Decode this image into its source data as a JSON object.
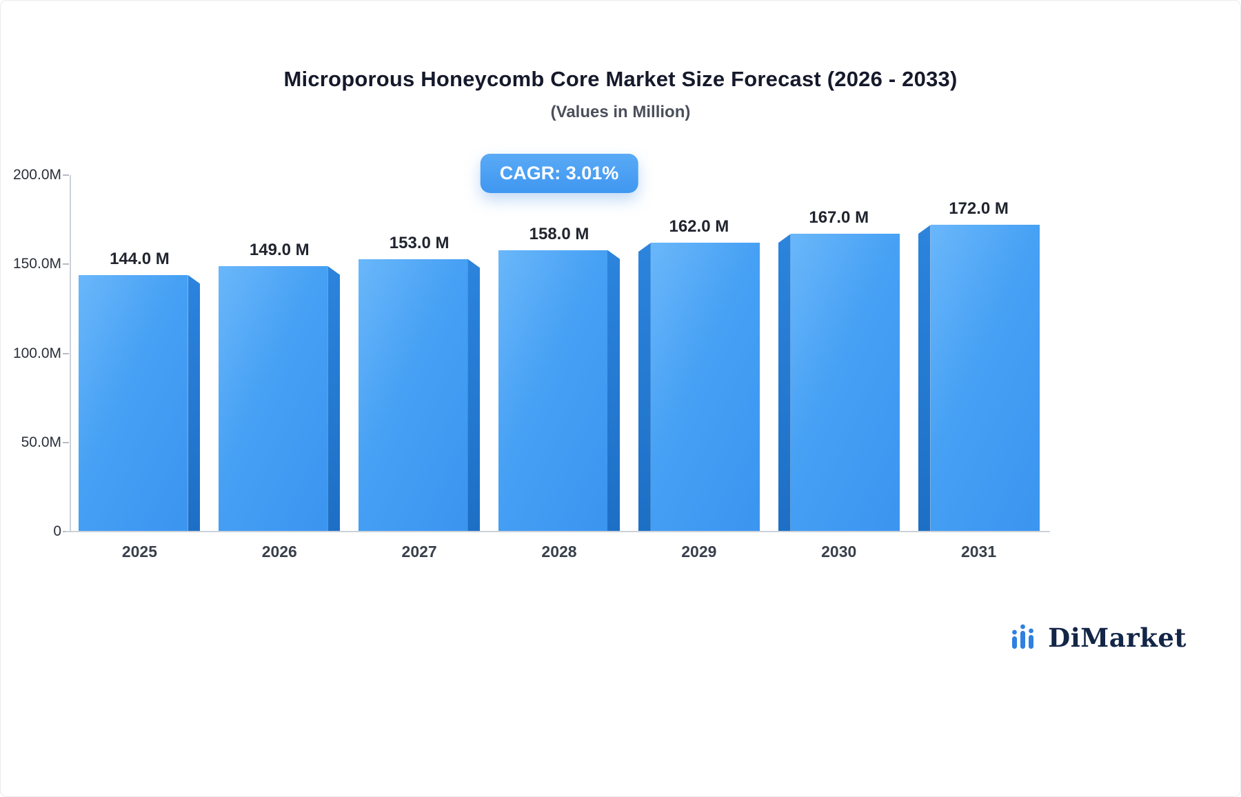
{
  "chart": {
    "title": "Microporous Honeycomb Core Market Size Forecast (2026 - 2033)",
    "subtitle": "(Values in Million)",
    "cagr_label": "CAGR: 3.01%"
  },
  "logo": {
    "text": "DiMarket"
  },
  "chart_data": {
    "type": "bar",
    "title": "Microporous Honeycomb Core Market Size Forecast (2026 - 2033)",
    "subtitle": "(Values in Million)",
    "annotation": "CAGR: 3.01%",
    "categories": [
      "2025",
      "2026",
      "2027",
      "2028",
      "2029",
      "2030",
      "2031"
    ],
    "values": [
      144,
      149,
      153,
      158,
      162,
      167,
      172
    ],
    "value_labels": [
      "144.0 M",
      "149.0 M",
      "153.0 M",
      "158.0 M",
      "162.0 M",
      "167.0 M",
      "172.0 M"
    ],
    "xlabel": "",
    "ylabel": "",
    "ylim": [
      0,
      200
    ],
    "y_ticks": [
      {
        "label": "200.0M",
        "value": 200
      },
      {
        "label": "150.0M",
        "value": 150
      },
      {
        "label": "100.0M",
        "value": 100
      },
      {
        "label": "50.0M",
        "value": 50
      },
      {
        "label": "0",
        "value": 0
      }
    ],
    "grid": false,
    "legend": false,
    "bar_color": "#3e9af2",
    "bar_side_color": "#1e73c9"
  }
}
